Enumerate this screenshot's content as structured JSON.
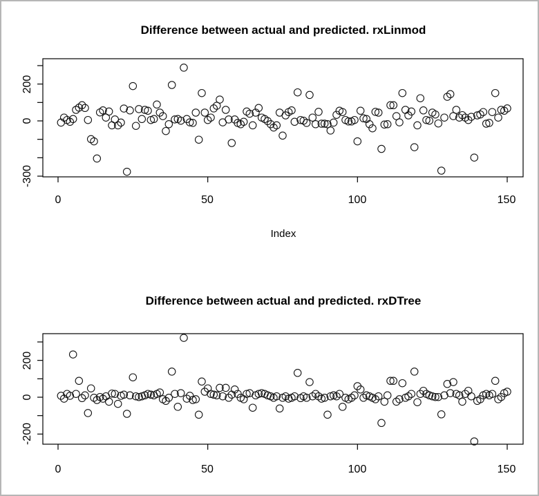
{
  "page": {
    "background": "#ffffff",
    "frame_color": "#b6b6b6",
    "point_color": "#111111"
  },
  "chart_data": [
    {
      "type": "scatter",
      "title": "Difference between actual and predicted. rxLinmod",
      "xlabel": "Index",
      "ylabel": "",
      "marker": "open-circle",
      "grid": false,
      "legend": "none",
      "xlim": [
        -5,
        155
      ],
      "ylim": [
        -304,
        338
      ],
      "x_ticks": [
        "0",
        "50",
        "100",
        "150"
      ],
      "x_tick_values": [
        0,
        50,
        100,
        150
      ],
      "y_tick_values": [
        300,
        200,
        100,
        0,
        -100,
        -200,
        -300
      ],
      "y_tick_labels": [
        "200",
        "0",
        "-300"
      ],
      "y_labeled_tick_values": [
        200,
        0,
        -300
      ],
      "x_start": 1,
      "values": [
        -9,
        18,
        5,
        -5,
        10,
        60,
        72,
        85,
        70,
        5,
        -99,
        -111,
        -204,
        46,
        57,
        18,
        51,
        -24,
        8,
        -24,
        -9,
        67,
        -276,
        57,
        189,
        -27,
        64,
        10,
        60,
        55,
        5,
        10,
        89,
        45,
        26,
        -55,
        -18,
        195,
        8,
        10,
        1,
        289,
        10,
        -8,
        -11,
        45,
        -102,
        151,
        45,
        5,
        18,
        68,
        82,
        116,
        -8,
        60,
        8,
        -120,
        8,
        -11,
        -18,
        -5,
        51,
        39,
        -24,
        45,
        70,
        18,
        10,
        -1,
        -18,
        -36,
        -24,
        45,
        -80,
        30,
        48,
        57,
        -5,
        155,
        5,
        1,
        -11,
        141,
        18,
        -18,
        49,
        -15,
        -15,
        -18,
        -52,
        -9,
        33,
        55,
        48,
        5,
        -3,
        -3,
        5,
        -111,
        55,
        14,
        10,
        -18,
        -40,
        49,
        45,
        -152,
        -20,
        -18,
        85,
        85,
        26,
        -8,
        151,
        60,
        30,
        51,
        -143,
        -24,
        123,
        57,
        5,
        1,
        45,
        35,
        -14,
        -270,
        18,
        131,
        145,
        26,
        60,
        18,
        31,
        18,
        5,
        22,
        -199,
        30,
        35,
        48,
        -15,
        -11,
        48,
        151,
        18,
        60,
        55,
        68
      ]
    },
    {
      "type": "scatter",
      "title": "Difference between actual and predicted. rxDTree",
      "xlabel": "",
      "ylabel": "",
      "marker": "open-circle",
      "grid": false,
      "legend": "none",
      "xlim": [
        -5,
        155
      ],
      "ylim": [
        -255,
        345
      ],
      "x_ticks": [
        "0",
        "50",
        "100",
        "150"
      ],
      "x_tick_values": [
        0,
        50,
        100,
        150
      ],
      "y_tick_values": [
        300,
        200,
        100,
        0,
        -100,
        -200
      ],
      "y_tick_labels": [
        "200",
        "0",
        "-200"
      ],
      "y_labeled_tick_values": [
        200,
        0,
        -200
      ],
      "x_start": 1,
      "values": [
        8,
        -8,
        18,
        8,
        232,
        18,
        89,
        -5,
        10,
        -86,
        48,
        -3,
        -15,
        1,
        -8,
        5,
        -24,
        20,
        18,
        -36,
        8,
        14,
        -90,
        10,
        108,
        5,
        1,
        5,
        10,
        18,
        14,
        10,
        18,
        26,
        -11,
        -20,
        -3,
        139,
        18,
        -52,
        22,
        322,
        -8,
        8,
        -15,
        -11,
        -95,
        85,
        30,
        48,
        18,
        14,
        10,
        51,
        5,
        51,
        -3,
        14,
        42,
        18,
        -3,
        -11,
        18,
        22,
        -57,
        10,
        18,
        22,
        18,
        10,
        5,
        -3,
        5,
        -61,
        -3,
        5,
        -8,
        -3,
        5,
        132,
        -5,
        5,
        -3,
        82,
        5,
        18,
        5,
        -8,
        -3,
        -95,
        5,
        10,
        5,
        18,
        -52,
        -3,
        -11,
        -3,
        10,
        60,
        42,
        -3,
        10,
        5,
        -3,
        -11,
        5,
        -140,
        -24,
        10,
        89,
        89,
        -24,
        -11,
        76,
        -3,
        5,
        18,
        139,
        -27,
        18,
        35,
        18,
        10,
        5,
        1,
        1,
        -93,
        10,
        72,
        22,
        82,
        18,
        10,
        -24,
        18,
        35,
        5,
        -240,
        -20,
        -11,
        10,
        18,
        10,
        18,
        89,
        -11,
        1,
        22,
        30
      ]
    }
  ]
}
